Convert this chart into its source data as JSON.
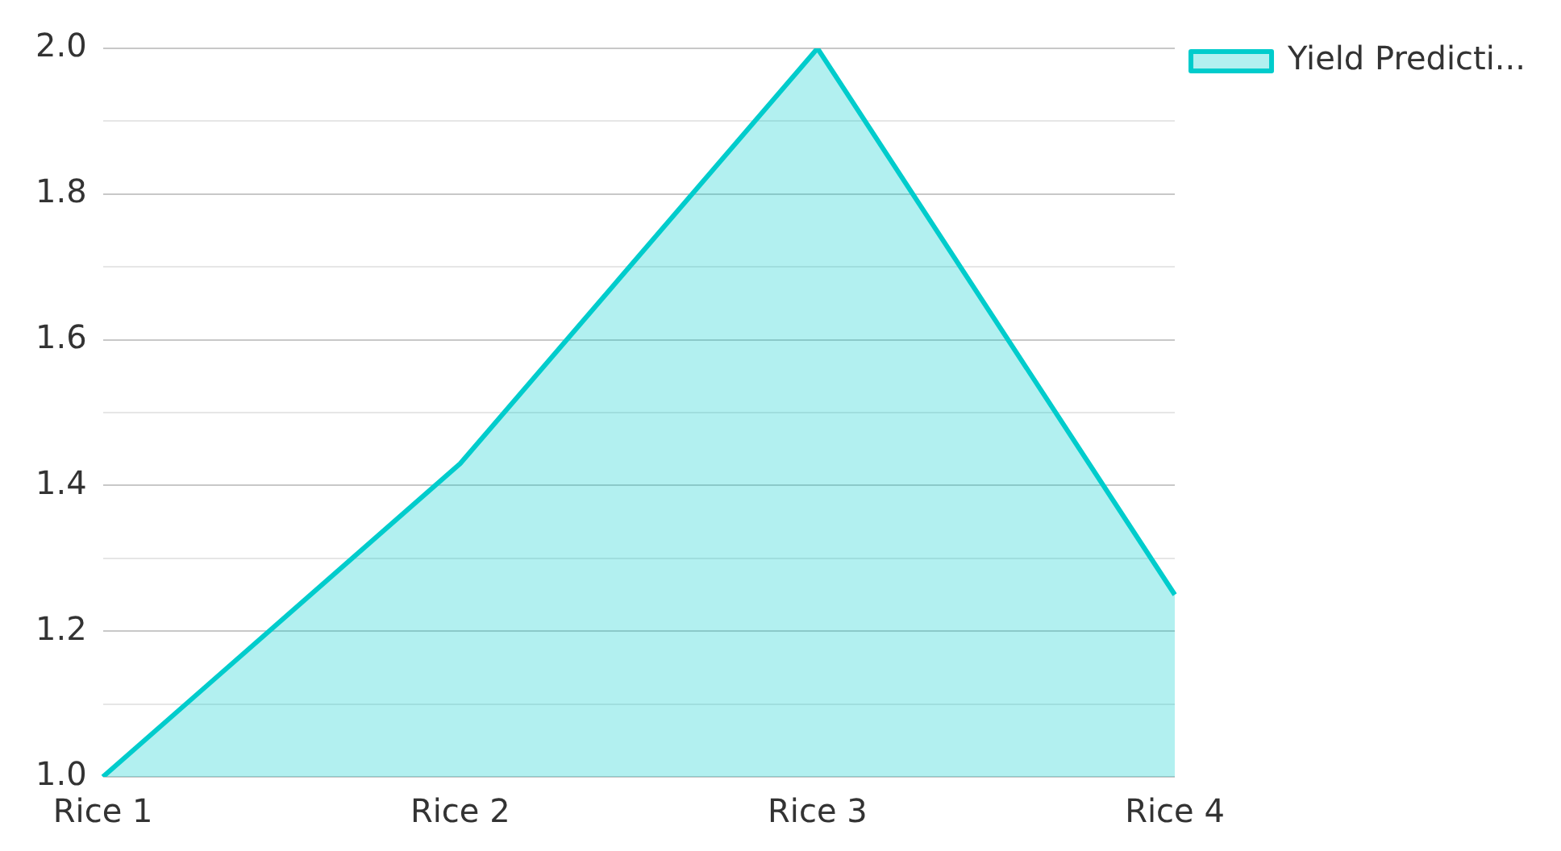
{
  "chart_data": {
    "type": "area",
    "categories": [
      "Rice 1",
      "Rice 2",
      "Rice 3",
      "Rice 4"
    ],
    "series": [
      {
        "name": "Yield Predicti...",
        "color": "#00cccc",
        "values": [
          1.0,
          1.43,
          2.0,
          1.25
        ]
      }
    ],
    "ylim": [
      1.0,
      2.0
    ],
    "yticks": [
      {
        "value": 1.0,
        "label": "1.0"
      },
      {
        "value": 1.1,
        "label": null
      },
      {
        "value": 1.2,
        "label": "1.2"
      },
      {
        "value": 1.3,
        "label": null
      },
      {
        "value": 1.4,
        "label": "1.4"
      },
      {
        "value": 1.5,
        "label": null
      },
      {
        "value": 1.6,
        "label": "1.6"
      },
      {
        "value": 1.7,
        "label": null
      },
      {
        "value": 1.8,
        "label": "1.8"
      },
      {
        "value": 1.9,
        "label": null
      },
      {
        "value": 2.0,
        "label": "2.0"
      }
    ],
    "grid": "y",
    "legend": "top right",
    "marker": "none",
    "line_style": "solid"
  }
}
